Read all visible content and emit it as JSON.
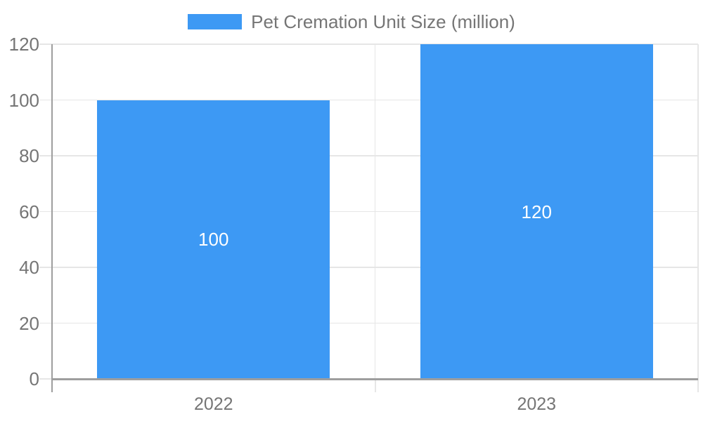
{
  "chart_data": {
    "type": "bar",
    "title": "Pet Cremation Unit Size (million)",
    "legend": [
      "Pet Cremation Unit Size (million)"
    ],
    "legend_position": "top",
    "categories": [
      "2022",
      "2023"
    ],
    "values": [
      100,
      120
    ],
    "bar_value_labels": [
      "100",
      "120"
    ],
    "xlabel": "",
    "ylabel": "",
    "ylim": [
      0,
      120
    ],
    "yticks": [
      0,
      20,
      40,
      60,
      80,
      100,
      120
    ],
    "grid": true,
    "bar_color": "#3D99F4",
    "bar_label_color": "#FFFFFF",
    "grid_color": "#E6E6E6",
    "axis_color": "#9E9E9E",
    "tick_label_color": "#757575",
    "legend_text_color": "#757575",
    "background_color": "#FFFFFF"
  }
}
